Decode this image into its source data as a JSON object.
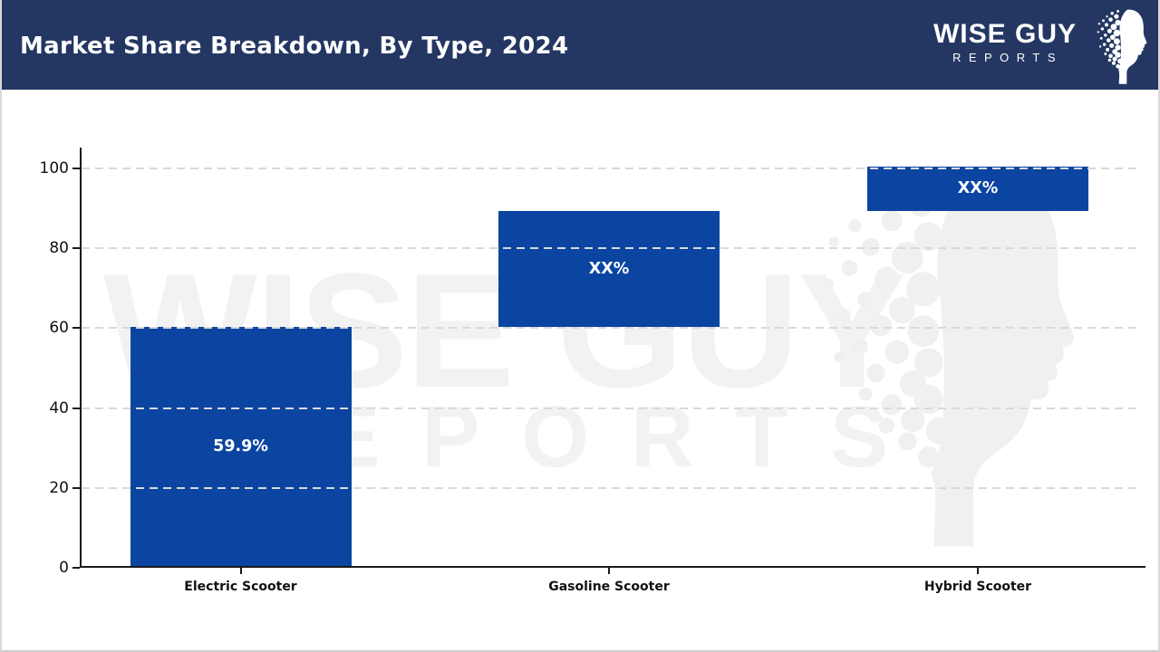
{
  "header": {
    "title": "Market Share Breakdown, By Type, 2024",
    "logo": {
      "line1": "WISE GUY",
      "line2": "REPORTS"
    }
  },
  "watermark": {
    "line1": "WISE GUY",
    "line2": "REPORTS"
  },
  "chart_data": {
    "type": "bar",
    "subtype": "waterfall-stacked-percentage",
    "title": "Market Share Breakdown, By Type, 2024",
    "categories": [
      "Electric Scooter",
      "Gasoline Scooter",
      "Hybrid Scooter"
    ],
    "segments": [
      {
        "category": "Electric Scooter",
        "start": 0,
        "end": 59.9,
        "label": "59.9%"
      },
      {
        "category": "Gasoline Scooter",
        "start": 59.9,
        "end": 89.0,
        "label": "XX%"
      },
      {
        "category": "Hybrid Scooter",
        "start": 89.0,
        "end": 100,
        "label": "XX%"
      }
    ],
    "xlabel": "",
    "ylabel": "",
    "ylim": [
      0,
      100
    ],
    "yticks": [
      0,
      20,
      40,
      60,
      80,
      100
    ],
    "grid": "horizontal-dashed",
    "legend": null,
    "colors": {
      "bar": "#0b45a1",
      "bar_label": "#ffffff",
      "header_bg": "#243763",
      "axis": "#1a1a1a",
      "grid": "#d9d9d9",
      "watermark": "#f2f2f2"
    }
  }
}
